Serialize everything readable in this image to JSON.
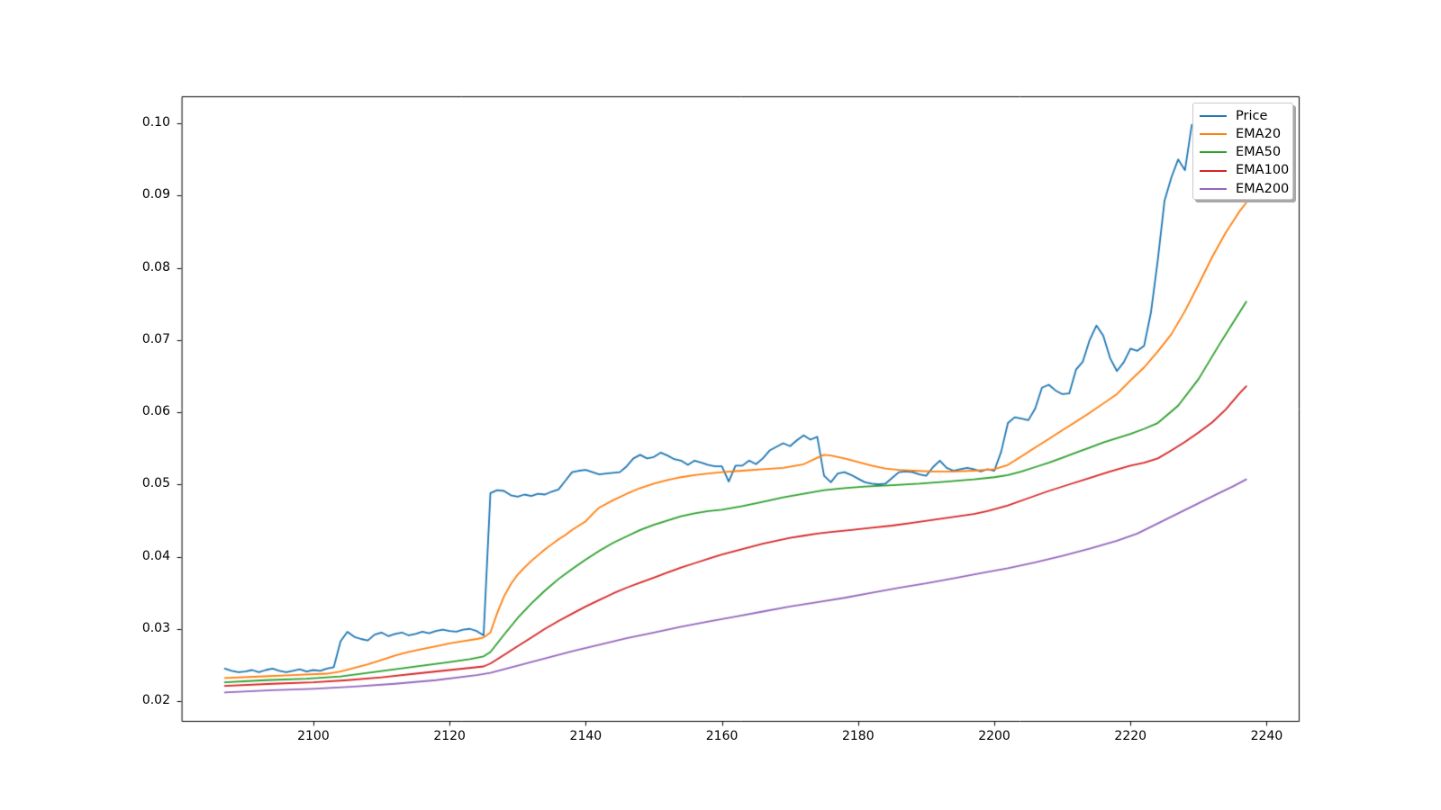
{
  "figure": {
    "background_color": "#ffffff",
    "axes": {
      "spine_color": "#000000",
      "tick_color": "#000000",
      "tick_label_color": "#000000",
      "tick_length": 4
    }
  },
  "chart_data": {
    "type": "line",
    "title": "",
    "xlabel": "",
    "ylabel": "",
    "grid": false,
    "xlim": [
      2080.7,
      2244.7
    ],
    "ylim": [
      0.01726,
      0.10374
    ],
    "x_ticks": {
      "values": [
        2100,
        2120,
        2140,
        2160,
        2180,
        2200,
        2220,
        2240
      ],
      "labels": [
        "2100",
        "2120",
        "2140",
        "2160",
        "2180",
        "2200",
        "2220",
        "2240"
      ]
    },
    "y_ticks": {
      "values": [
        0.02,
        0.03,
        0.04,
        0.05,
        0.06,
        0.07,
        0.08,
        0.09,
        0.1
      ],
      "labels": [
        "0.02",
        "0.03",
        "0.04",
        "0.05",
        "0.06",
        "0.07",
        "0.08",
        "0.09",
        "0.10"
      ]
    },
    "legend": {
      "position": "upper right",
      "shadow": true,
      "entries": [
        "Price",
        "EMA20",
        "EMA50",
        "EMA100",
        "EMA200"
      ]
    },
    "series": [
      {
        "name": "Price",
        "color": "#1f77b4",
        "line_width": 1.8,
        "x_start": 2087,
        "x_step": 1,
        "values": [
          0.0245,
          0.0242,
          0.024,
          0.0241,
          0.0243,
          0.024,
          0.0243,
          0.0245,
          0.0242,
          0.024,
          0.0242,
          0.0244,
          0.0241,
          0.0243,
          0.0242,
          0.0245,
          0.0247,
          0.0283,
          0.0296,
          0.0289,
          0.0286,
          0.0284,
          0.0292,
          0.0295,
          0.029,
          0.0293,
          0.0295,
          0.0291,
          0.0293,
          0.0296,
          0.0294,
          0.0297,
          0.0299,
          0.0297,
          0.0296,
          0.0299,
          0.03,
          0.0297,
          0.0291,
          0.0488,
          0.0492,
          0.0491,
          0.0485,
          0.0483,
          0.0486,
          0.0484,
          0.0487,
          0.0486,
          0.049,
          0.0493,
          0.0505,
          0.0517,
          0.0519,
          0.052,
          0.0517,
          0.0514,
          0.0515,
          0.0516,
          0.0517,
          0.0525,
          0.0536,
          0.0541,
          0.0536,
          0.0538,
          0.0544,
          0.054,
          0.0535,
          0.0533,
          0.0527,
          0.0533,
          0.053,
          0.0527,
          0.0525,
          0.0525,
          0.0504,
          0.0526,
          0.0526,
          0.0533,
          0.0528,
          0.0536,
          0.0547,
          0.0552,
          0.0557,
          0.0553,
          0.0561,
          0.0568,
          0.0562,
          0.0566,
          0.0512,
          0.0503,
          0.0515,
          0.0517,
          0.0513,
          0.0508,
          0.0503,
          0.0501,
          0.05,
          0.0501,
          0.0509,
          0.0517,
          0.0518,
          0.0517,
          0.0514,
          0.0512,
          0.0524,
          0.0533,
          0.0523,
          0.0519,
          0.0521,
          0.0523,
          0.0521,
          0.0518,
          0.0521,
          0.0519,
          0.0545,
          0.0585,
          0.0593,
          0.0591,
          0.0589,
          0.0605,
          0.0634,
          0.0638,
          0.063,
          0.0625,
          0.0626,
          0.0659,
          0.067,
          0.07,
          0.072,
          0.0706,
          0.0675,
          0.0657,
          0.0669,
          0.0688,
          0.0685,
          0.0692,
          0.0738,
          0.081,
          0.0893,
          0.0925,
          0.095,
          0.0935,
          0.0998
        ]
      },
      {
        "name": "EMA20",
        "color": "#ff7f0e",
        "line_width": 1.8,
        "points": [
          [
            2087,
            0.0232
          ],
          [
            2092,
            0.0234
          ],
          [
            2097,
            0.0236
          ],
          [
            2102,
            0.0238
          ],
          [
            2104,
            0.0241
          ],
          [
            2106,
            0.0246
          ],
          [
            2108,
            0.0251
          ],
          [
            2110,
            0.0257
          ],
          [
            2112,
            0.0263
          ],
          [
            2114,
            0.0268
          ],
          [
            2116,
            0.0272
          ],
          [
            2118,
            0.0276
          ],
          [
            2120,
            0.028
          ],
          [
            2122,
            0.0283
          ],
          [
            2124,
            0.0286
          ],
          [
            2125,
            0.0288
          ],
          [
            2126,
            0.0295
          ],
          [
            2127,
            0.0322
          ],
          [
            2128,
            0.0345
          ],
          [
            2129,
            0.0362
          ],
          [
            2130,
            0.0375
          ],
          [
            2131,
            0.0385
          ],
          [
            2132,
            0.0394
          ],
          [
            2133,
            0.0402
          ],
          [
            2134,
            0.041
          ],
          [
            2135,
            0.0417
          ],
          [
            2136,
            0.0424
          ],
          [
            2137,
            0.043
          ],
          [
            2138,
            0.0437
          ],
          [
            2139,
            0.0443
          ],
          [
            2140,
            0.0449
          ],
          [
            2141,
            0.0459
          ],
          [
            2142,
            0.0468
          ],
          [
            2144,
            0.0478
          ],
          [
            2146,
            0.0487
          ],
          [
            2148,
            0.0495
          ],
          [
            2150,
            0.0501
          ],
          [
            2152,
            0.0506
          ],
          [
            2154,
            0.051
          ],
          [
            2156,
            0.0513
          ],
          [
            2158,
            0.0515
          ],
          [
            2160,
            0.0517
          ],
          [
            2163,
            0.0519
          ],
          [
            2166,
            0.0521
          ],
          [
            2169,
            0.0523
          ],
          [
            2172,
            0.0528
          ],
          [
            2174,
            0.0537
          ],
          [
            2175,
            0.0541
          ],
          [
            2176,
            0.054
          ],
          [
            2178,
            0.0536
          ],
          [
            2180,
            0.0531
          ],
          [
            2182,
            0.0526
          ],
          [
            2184,
            0.0522
          ],
          [
            2186,
            0.052
          ],
          [
            2188,
            0.0519
          ],
          [
            2191,
            0.0518
          ],
          [
            2194,
            0.0518
          ],
          [
            2197,
            0.0519
          ],
          [
            2200,
            0.0521
          ],
          [
            2202,
            0.0527
          ],
          [
            2204,
            0.0539
          ],
          [
            2206,
            0.0551
          ],
          [
            2208,
            0.0563
          ],
          [
            2210,
            0.0575
          ],
          [
            2212,
            0.0587
          ],
          [
            2214,
            0.0599
          ],
          [
            2216,
            0.0612
          ],
          [
            2218,
            0.0625
          ],
          [
            2220,
            0.0644
          ],
          [
            2222,
            0.0662
          ],
          [
            2224,
            0.0684
          ],
          [
            2226,
            0.0708
          ],
          [
            2228,
            0.074
          ],
          [
            2230,
            0.0777
          ],
          [
            2232,
            0.0815
          ],
          [
            2234,
            0.0849
          ],
          [
            2236,
            0.0878
          ],
          [
            2237,
            0.089
          ]
        ]
      },
      {
        "name": "EMA50",
        "color": "#2ca02c",
        "line_width": 1.8,
        "points": [
          [
            2087,
            0.0226
          ],
          [
            2093,
            0.0229
          ],
          [
            2099,
            0.0231
          ],
          [
            2104,
            0.0234
          ],
          [
            2108,
            0.0239
          ],
          [
            2112,
            0.0244
          ],
          [
            2116,
            0.0249
          ],
          [
            2120,
            0.0254
          ],
          [
            2123,
            0.0258
          ],
          [
            2125,
            0.0262
          ],
          [
            2126,
            0.0268
          ],
          [
            2128,
            0.0292
          ],
          [
            2130,
            0.0315
          ],
          [
            2132,
            0.0335
          ],
          [
            2134,
            0.0353
          ],
          [
            2136,
            0.0369
          ],
          [
            2138,
            0.0383
          ],
          [
            2140,
            0.0396
          ],
          [
            2142,
            0.0408
          ],
          [
            2144,
            0.0419
          ],
          [
            2146,
            0.0428
          ],
          [
            2148,
            0.0437
          ],
          [
            2150,
            0.0444
          ],
          [
            2152,
            0.045
          ],
          [
            2154,
            0.0456
          ],
          [
            2156,
            0.046
          ],
          [
            2158,
            0.0463
          ],
          [
            2160,
            0.0465
          ],
          [
            2163,
            0.047
          ],
          [
            2166,
            0.0476
          ],
          [
            2169,
            0.0482
          ],
          [
            2172,
            0.0487
          ],
          [
            2175,
            0.0492
          ],
          [
            2178,
            0.0495
          ],
          [
            2181,
            0.0497
          ],
          [
            2185,
            0.0499
          ],
          [
            2189,
            0.0501
          ],
          [
            2193,
            0.0504
          ],
          [
            2197,
            0.0507
          ],
          [
            2200,
            0.051
          ],
          [
            2202,
            0.0513
          ],
          [
            2204,
            0.0518
          ],
          [
            2206,
            0.0524
          ],
          [
            2208,
            0.053
          ],
          [
            2210,
            0.0537
          ],
          [
            2212,
            0.0544
          ],
          [
            2214,
            0.0551
          ],
          [
            2216,
            0.0558
          ],
          [
            2218,
            0.0564
          ],
          [
            2220,
            0.057
          ],
          [
            2222,
            0.0577
          ],
          [
            2224,
            0.0585
          ],
          [
            2227,
            0.0609
          ],
          [
            2230,
            0.0646
          ],
          [
            2233,
            0.0693
          ],
          [
            2235,
            0.0723
          ],
          [
            2237,
            0.0753
          ]
        ]
      },
      {
        "name": "EMA100",
        "color": "#d62728",
        "line_width": 1.8,
        "points": [
          [
            2087,
            0.0221
          ],
          [
            2094,
            0.0224
          ],
          [
            2100,
            0.0226
          ],
          [
            2105,
            0.0229
          ],
          [
            2110,
            0.0233
          ],
          [
            2115,
            0.0238
          ],
          [
            2120,
            0.0243
          ],
          [
            2125,
            0.0248
          ],
          [
            2126,
            0.0252
          ],
          [
            2128,
            0.0264
          ],
          [
            2130,
            0.0276
          ],
          [
            2132,
            0.0288
          ],
          [
            2134,
            0.03
          ],
          [
            2136,
            0.0311
          ],
          [
            2138,
            0.0321
          ],
          [
            2140,
            0.0331
          ],
          [
            2142,
            0.034
          ],
          [
            2144,
            0.0349
          ],
          [
            2146,
            0.0357
          ],
          [
            2148,
            0.0364
          ],
          [
            2150,
            0.0371
          ],
          [
            2152,
            0.0378
          ],
          [
            2154,
            0.0385
          ],
          [
            2156,
            0.0391
          ],
          [
            2158,
            0.0397
          ],
          [
            2160,
            0.0403
          ],
          [
            2162,
            0.0408
          ],
          [
            2164,
            0.0413
          ],
          [
            2166,
            0.0418
          ],
          [
            2168,
            0.0422
          ],
          [
            2170,
            0.0426
          ],
          [
            2172,
            0.0429
          ],
          [
            2174,
            0.0432
          ],
          [
            2176,
            0.0434
          ],
          [
            2179,
            0.0437
          ],
          [
            2182,
            0.044
          ],
          [
            2185,
            0.0443
          ],
          [
            2188,
            0.0447
          ],
          [
            2191,
            0.0451
          ],
          [
            2194,
            0.0455
          ],
          [
            2197,
            0.0459
          ],
          [
            2199,
            0.0463
          ],
          [
            2202,
            0.0471
          ],
          [
            2205,
            0.0481
          ],
          [
            2208,
            0.0491
          ],
          [
            2211,
            0.05
          ],
          [
            2214,
            0.0509
          ],
          [
            2217,
            0.0518
          ],
          [
            2220,
            0.0526
          ],
          [
            2222,
            0.053
          ],
          [
            2224,
            0.0536
          ],
          [
            2226,
            0.0547
          ],
          [
            2228,
            0.0559
          ],
          [
            2230,
            0.0572
          ],
          [
            2232,
            0.0586
          ],
          [
            2234,
            0.0604
          ],
          [
            2236,
            0.0626
          ],
          [
            2237,
            0.0636
          ]
        ]
      },
      {
        "name": "EMA200",
        "color": "#9467bd",
        "line_width": 1.8,
        "points": [
          [
            2087,
            0.0212
          ],
          [
            2094,
            0.0215
          ],
          [
            2100,
            0.0217
          ],
          [
            2106,
            0.022
          ],
          [
            2112,
            0.0224
          ],
          [
            2118,
            0.0229
          ],
          [
            2124,
            0.0236
          ],
          [
            2126,
            0.0239
          ],
          [
            2130,
            0.0249
          ],
          [
            2134,
            0.0259
          ],
          [
            2138,
            0.0269
          ],
          [
            2142,
            0.0278
          ],
          [
            2146,
            0.0287
          ],
          [
            2150,
            0.0295
          ],
          [
            2154,
            0.0303
          ],
          [
            2158,
            0.031
          ],
          [
            2162,
            0.0317
          ],
          [
            2166,
            0.0324
          ],
          [
            2170,
            0.0331
          ],
          [
            2174,
            0.0337
          ],
          [
            2178,
            0.0343
          ],
          [
            2182,
            0.035
          ],
          [
            2186,
            0.0357
          ],
          [
            2190,
            0.0363
          ],
          [
            2194,
            0.037
          ],
          [
            2198,
            0.0377
          ],
          [
            2202,
            0.0384
          ],
          [
            2206,
            0.0392
          ],
          [
            2210,
            0.0401
          ],
          [
            2214,
            0.0411
          ],
          [
            2218,
            0.0422
          ],
          [
            2221,
            0.0432
          ],
          [
            2224,
            0.0446
          ],
          [
            2227,
            0.046
          ],
          [
            2230,
            0.0474
          ],
          [
            2233,
            0.0488
          ],
          [
            2235,
            0.0497
          ],
          [
            2237,
            0.0507
          ]
        ]
      }
    ]
  }
}
